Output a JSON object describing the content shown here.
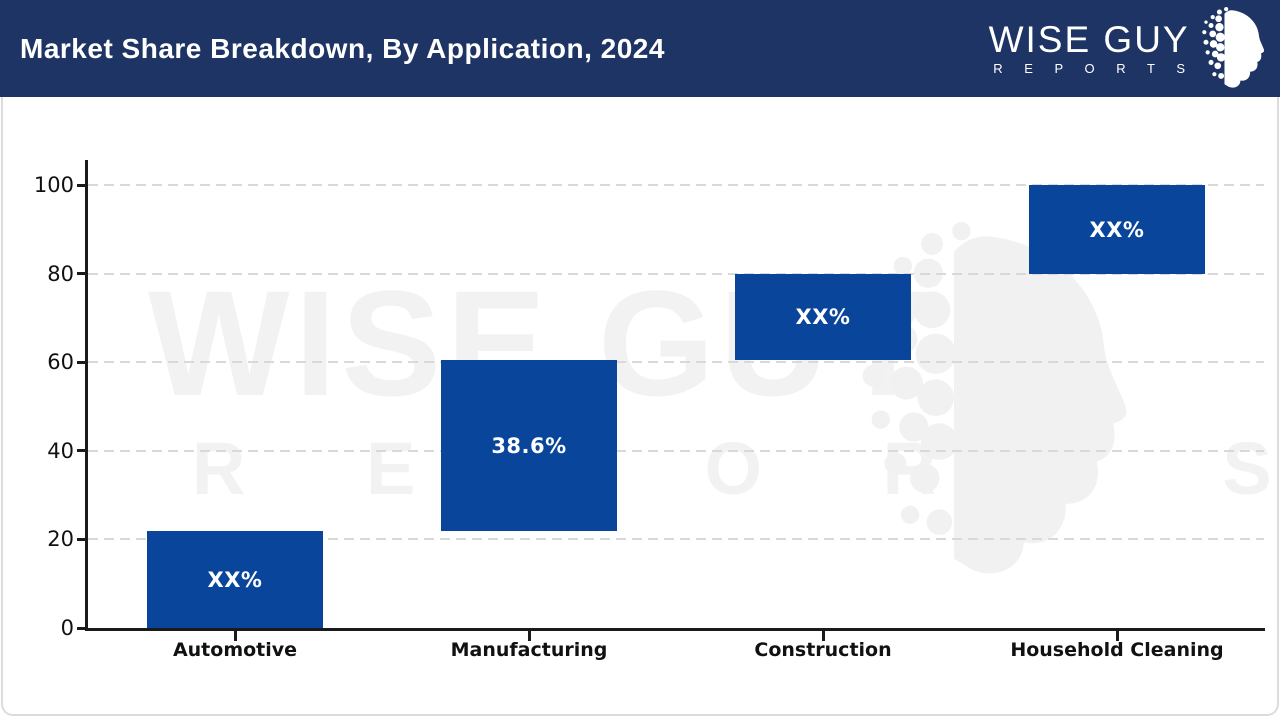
{
  "header": {
    "title": "Market Share Breakdown, By Application, 2024",
    "bg_color": "#1e3464",
    "logo": {
      "line1": "WISE GUY",
      "line2": "R E P O R T S"
    }
  },
  "watermark": {
    "line1": "WISE GUY",
    "line2": "R E P O R T S"
  },
  "chart_data": {
    "type": "bar",
    "subtype": "waterfall",
    "title": "Market Share Breakdown, By Application, 2024",
    "categories": [
      "Automotive",
      "Manufacturing",
      "Construction",
      "Household Cleaning"
    ],
    "bars": [
      {
        "category": "Automotive",
        "start": 0,
        "end": 21.8,
        "label": "XX%"
      },
      {
        "category": "Manufacturing",
        "start": 21.8,
        "end": 60.4,
        "label": "38.6%"
      },
      {
        "category": "Construction",
        "start": 60.4,
        "end": 79.9,
        "label": "XX%"
      },
      {
        "category": "Household Cleaning",
        "start": 79.9,
        "end": 100,
        "label": "XX%"
      }
    ],
    "bar_color": "#09459b",
    "bar_label_color": "#ffffff",
    "ylim": [
      0,
      100
    ],
    "yticks": [
      0,
      20,
      40,
      60,
      80,
      100
    ],
    "xlabel": "",
    "ylabel": "",
    "grid": "horizontal-dashed",
    "legend": "none"
  }
}
